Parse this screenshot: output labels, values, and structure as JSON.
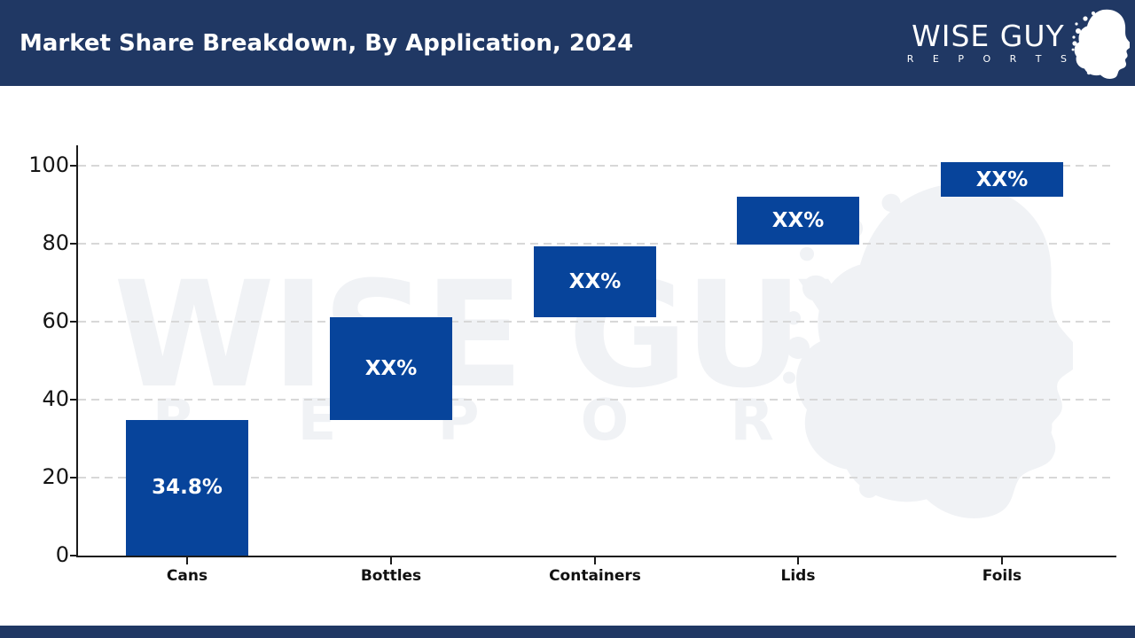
{
  "header": {
    "title": "Market Share Breakdown, By Application, 2024",
    "background": "#203864",
    "logo": {
      "line1": "WISE GUY",
      "line2": "R E P O R T S"
    }
  },
  "watermark": {
    "line1": "WISE GUY",
    "line2": "R E P O R T S"
  },
  "footer": {
    "background": "#203864"
  },
  "chart_data": {
    "type": "bar",
    "subtype": "waterfall-breakdown",
    "title": "Market Share Breakdown, By Application, 2024",
    "categories": [
      "Cans",
      "Bottles",
      "Containers",
      "Lids",
      "Foils"
    ],
    "segments": [
      {
        "category": "Cans",
        "start": 0,
        "end": 34.8,
        "label": "34.8%"
      },
      {
        "category": "Bottles",
        "start": 34.8,
        "end": 61.1,
        "label": "XX%"
      },
      {
        "category": "Containers",
        "start": 61.1,
        "end": 79.3,
        "label": "XX%"
      },
      {
        "category": "Lids",
        "start": 79.8,
        "end": 92.0,
        "label": "XX%"
      },
      {
        "category": "Foils",
        "start": 92.0,
        "end": 100.9,
        "label": "XX%"
      }
    ],
    "xlabel": "",
    "ylabel": "",
    "ylim": [
      0,
      105
    ],
    "yticks": [
      0,
      20,
      40,
      60,
      80,
      100
    ],
    "grid": "horizontal-dashed",
    "legend": "none",
    "bar_color": "#07449b",
    "label_color": "#ffffff",
    "grid_color": "#d8d8d8"
  }
}
